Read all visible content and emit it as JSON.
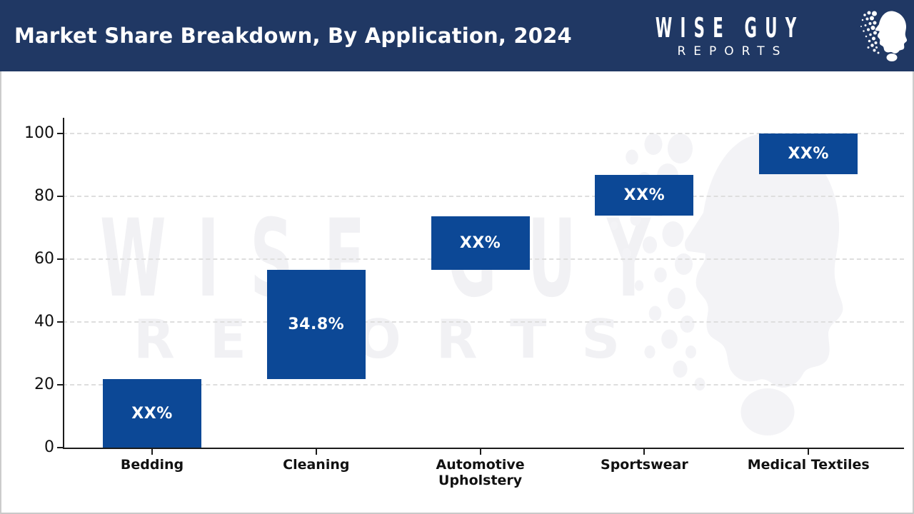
{
  "header": {
    "title": "Market Share Breakdown, By Application, 2024",
    "logo": {
      "line1": "WISE GUY",
      "line2": "REPORTS"
    }
  },
  "watermark": {
    "line1": "WISE GUY",
    "line2": "REPORTS"
  },
  "colors": {
    "header_bg": "#203864",
    "bar": "#0c4896",
    "axis": "#1b1b1b",
    "grid": "#dedede",
    "bar_label": "#ffffff",
    "watermark": "#f1f1f4"
  },
  "chart_data": {
    "type": "bar",
    "subtype": "waterfall-floating-bars",
    "title": "Market Share Breakdown, By Application, 2024",
    "unit": "%",
    "xlabel": "",
    "ylabel": "",
    "grid": "horizontal-dashed",
    "legend": null,
    "y_axis": {
      "min": 0,
      "max": 104,
      "ticks": [
        0,
        20,
        40,
        60,
        80,
        100
      ]
    },
    "categories": [
      "Bedding",
      "Cleaning",
      "Automotive Upholstery",
      "Sportswear",
      "Medical Textiles"
    ],
    "segments": [
      {
        "category": "Bedding",
        "label_lines": [
          "Bedding"
        ],
        "start": 0,
        "end": 21.8,
        "value_display": "XX%"
      },
      {
        "category": "Cleaning",
        "label_lines": [
          "Cleaning"
        ],
        "start": 21.8,
        "end": 56.6,
        "value": 34.8,
        "value_display": "34.8%"
      },
      {
        "category": "Automotive Upholstery",
        "label_lines": [
          "Automotive",
          "Upholstery"
        ],
        "start": 56.6,
        "end": 73.6,
        "value_display": "XX%"
      },
      {
        "category": "Sportswear",
        "label_lines": [
          "Sportswear"
        ],
        "start": 73.9,
        "end": 86.8,
        "value_display": "XX%"
      },
      {
        "category": "Medical Textiles",
        "label_lines": [
          "Medical Textiles"
        ],
        "start": 87.0,
        "end": 100.0,
        "value_display": "XX%"
      }
    ]
  }
}
